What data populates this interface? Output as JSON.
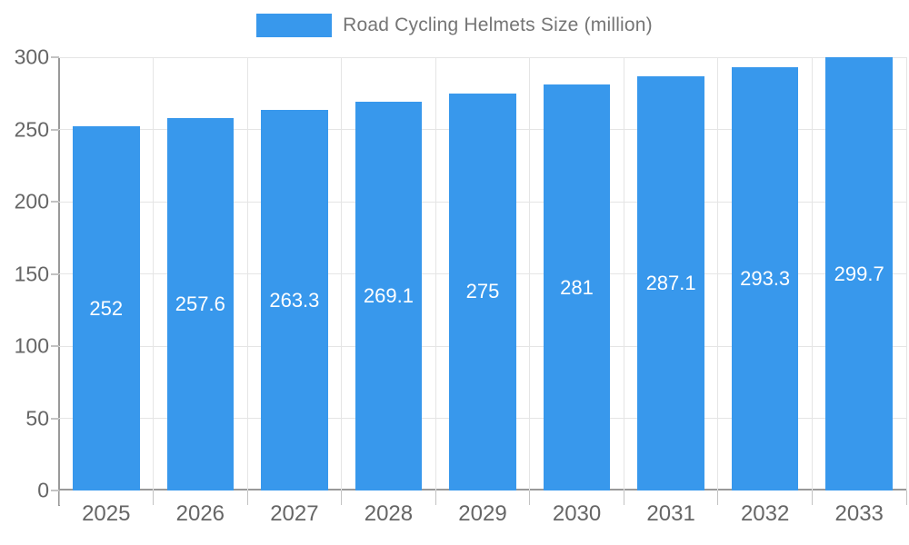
{
  "chart_data": {
    "type": "bar",
    "title": "",
    "legend": {
      "label": "Road Cycling Helmets Size (million)",
      "position": "top"
    },
    "categories": [
      "2025",
      "2026",
      "2027",
      "2028",
      "2029",
      "2030",
      "2031",
      "2032",
      "2033"
    ],
    "values": [
      252,
      257.6,
      263.3,
      269.1,
      275,
      281,
      287.1,
      293.3,
      299.7
    ],
    "xlabel": "",
    "ylabel": "",
    "ylim": [
      0,
      300
    ],
    "yticks": [
      0,
      50,
      100,
      150,
      200,
      250,
      300
    ],
    "grid": true,
    "bar_width_ratio": 0.71,
    "colors": {
      "bar": "#3898ec",
      "grid_line": "#e5e5e5",
      "axis_line": "#999999",
      "tick_mark": "#c3c3c3",
      "tick_text": "#666666",
      "legend_text": "#757575",
      "value_label": "#ffffff",
      "background": "#ffffff"
    }
  }
}
